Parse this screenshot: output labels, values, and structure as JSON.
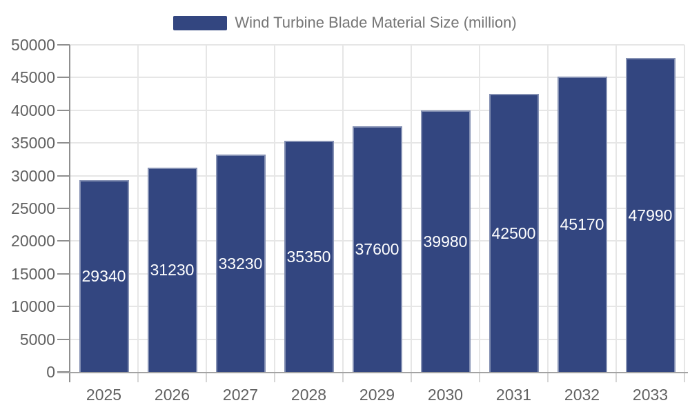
{
  "chart_data": {
    "type": "bar",
    "legend": "Wind Turbine Blade Material Size (million)",
    "categories": [
      "2025",
      "2026",
      "2027",
      "2028",
      "2029",
      "2030",
      "2031",
      "2032",
      "2033"
    ],
    "values": [
      29340,
      31230,
      33230,
      35350,
      37600,
      39980,
      42500,
      45170,
      47990
    ],
    "ylim": [
      0,
      50000
    ],
    "ytick_step": 5000,
    "grid": true,
    "legend_position": "top",
    "colors": {
      "bar": "#334680",
      "bar_border": "rgba(255,255,255,0.4)",
      "bar_label": "#ffffff",
      "legend_text": "#757575",
      "tick_text": "#616161",
      "axis_y": "#8f8f8f",
      "axis_x": "#a3a3a3",
      "grid": "#e6e6e6",
      "tick_minor": "#d6d6d6",
      "background": "#ffffff"
    }
  }
}
